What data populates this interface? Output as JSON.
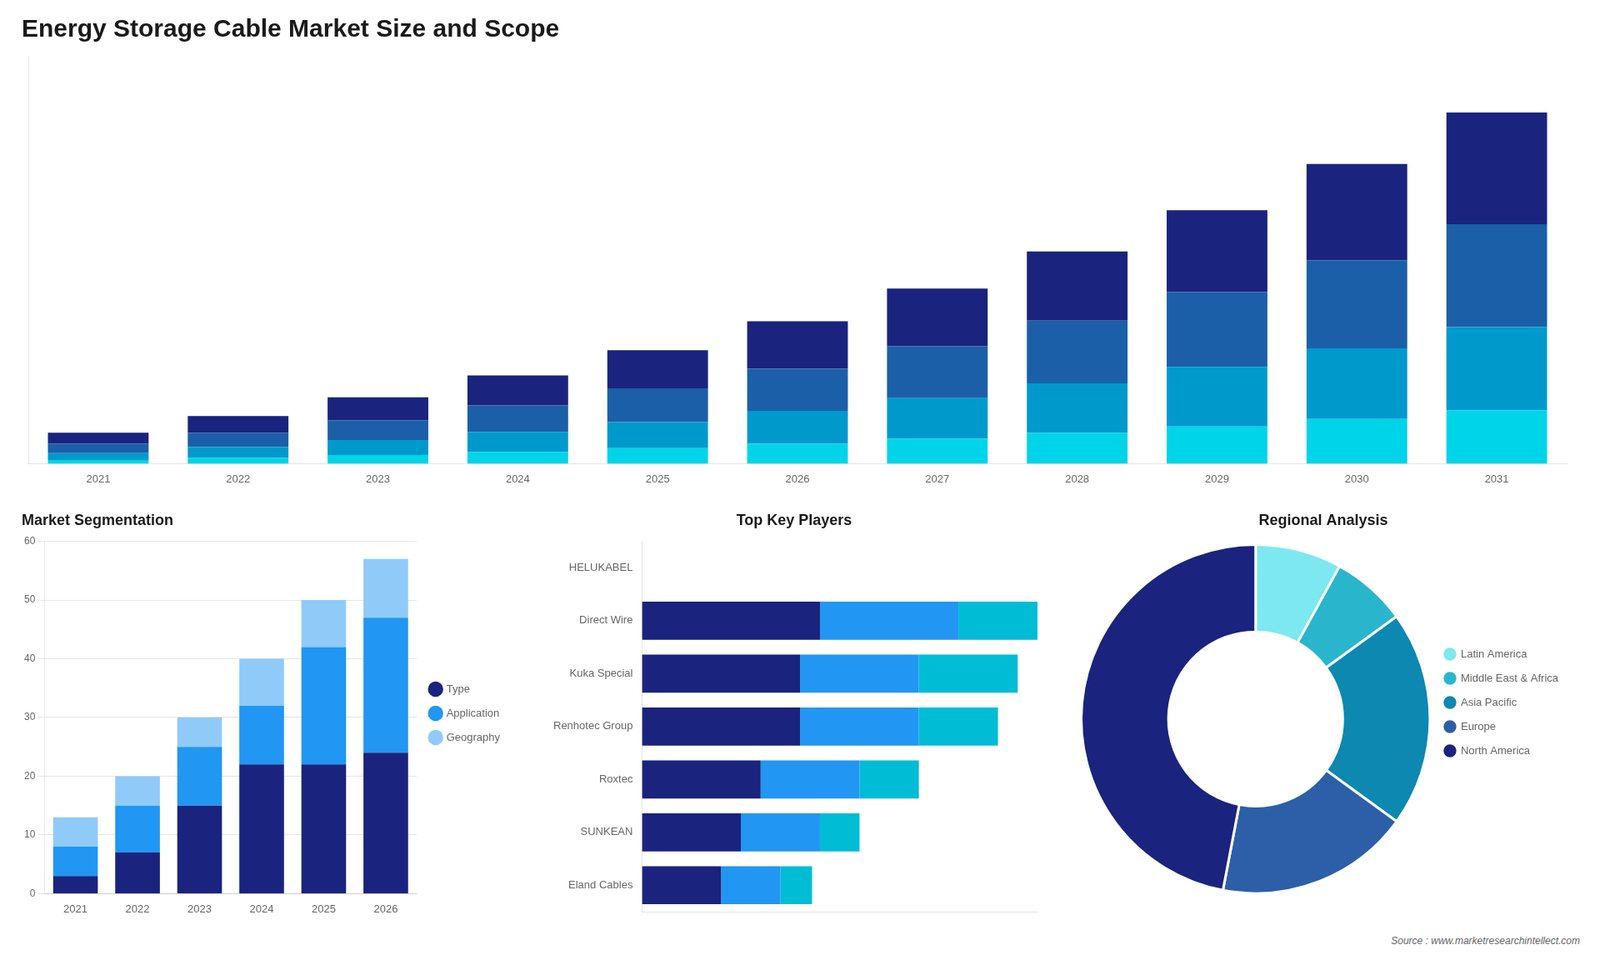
{
  "chart_data": [
    {
      "type": "bar",
      "title": "Energy Storage Cable Market Size and Scope",
      "categories": [
        "2021",
        "2022",
        "2023",
        "2024",
        "2025",
        "2026",
        "2027",
        "2028",
        "2029",
        "2030",
        "2031"
      ],
      "series": [
        {
          "color": "#00d4e8",
          "values": [
            0.3,
            0.48,
            0.7,
            0.95,
            1.25,
            1.6,
            2.0,
            2.48,
            3.0,
            3.6,
            4.3
          ]
        },
        {
          "color": "#0099cc",
          "values": [
            0.55,
            0.85,
            1.2,
            1.62,
            2.1,
            2.65,
            3.28,
            4.0,
            4.8,
            5.7,
            6.7
          ]
        },
        {
          "color": "#1a5fa8",
          "values": [
            0.75,
            1.15,
            1.6,
            2.12,
            2.72,
            3.4,
            4.18,
            5.05,
            6.02,
            7.1,
            8.3
          ]
        },
        {
          "color": "#1a237e",
          "values": [
            0.9,
            1.35,
            1.85,
            2.42,
            3.08,
            3.82,
            4.65,
            5.57,
            6.6,
            7.75,
            9.0
          ]
        }
      ],
      "stacked": true,
      "ylim": [
        0,
        32.8
      ],
      "tick_labels": "x",
      "grid": false
    },
    {
      "type": "bar",
      "title": "Market Segmentation",
      "categories": [
        "2021",
        "2022",
        "2023",
        "2024",
        "2025",
        "2026"
      ],
      "series": [
        {
          "name": "Type",
          "color": "#1a237e",
          "values": [
            3,
            7,
            15,
            22,
            22,
            24
          ]
        },
        {
          "name": "Application",
          "color": "#2196f3",
          "values": [
            5,
            8,
            10,
            10,
            20,
            23
          ]
        },
        {
          "name": "Geography",
          "color": "#90caf9",
          "values": [
            5,
            5,
            5,
            8,
            8,
            10
          ]
        }
      ],
      "stacked": true,
      "ylim": [
        0,
        60
      ],
      "yticks": [
        0,
        10,
        20,
        30,
        40,
        50,
        60
      ],
      "grid": true,
      "legend": "right"
    },
    {
      "type": "bar",
      "title": "Top Key Players",
      "orientation": "horizontal",
      "categories": [
        "HELUKABEL",
        "Direct Wire",
        "Kuka Special",
        "Renhotec Group",
        "Roxtec",
        "SUNKEAN",
        "Eland Cables"
      ],
      "series": [
        {
          "color": "#1a237e",
          "values": [
            0,
            4.5,
            4.0,
            4.0,
            3.0,
            2.5,
            2.0
          ]
        },
        {
          "color": "#2196f3",
          "values": [
            0,
            3.5,
            3.0,
            3.0,
            2.5,
            2.0,
            1.5
          ]
        },
        {
          "color": "#00bcd4",
          "values": [
            0,
            2.0,
            2.5,
            2.0,
            1.5,
            1.0,
            0.8
          ]
        }
      ],
      "stacked": true,
      "xlim": [
        0,
        10
      ],
      "tick_labels": "y",
      "grid": false
    },
    {
      "type": "doughnut",
      "title": "Regional Analysis",
      "categories": [
        "Latin America",
        "Middle East & Africa",
        "Asia Pacific",
        "Europe",
        "North America"
      ],
      "values": [
        8,
        7,
        20,
        18,
        47
      ],
      "colors": [
        "#7de8f0",
        "#29b6cc",
        "#0d88b0",
        "#2c5fa8",
        "#1a237e"
      ],
      "legend": "right",
      "annotations": [
        "Source : www.marketresearchintellect.com"
      ]
    }
  ]
}
